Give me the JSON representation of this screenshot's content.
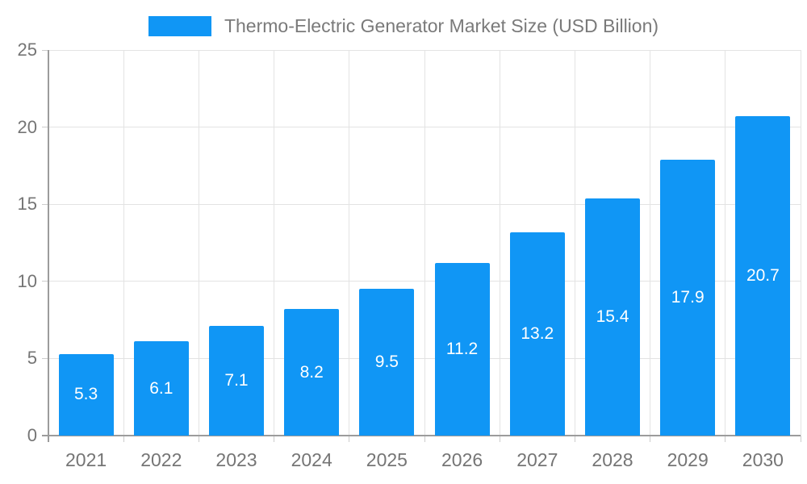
{
  "chart_data": {
    "type": "bar",
    "title": "Thermo-Electric Generator Market Size (USD Billion)",
    "categories": [
      "2021",
      "2022",
      "2023",
      "2024",
      "2025",
      "2026",
      "2027",
      "2028",
      "2029",
      "2030"
    ],
    "values": [
      5.3,
      6.1,
      7.1,
      8.2,
      9.5,
      11.2,
      13.2,
      15.4,
      17.9,
      20.7
    ],
    "value_labels": [
      "5.3",
      "6.1",
      "7.1",
      "8.2",
      "9.5",
      "11.2",
      "13.2",
      "15.4",
      "17.9",
      "20.7"
    ],
    "xlabel": "",
    "ylabel": "",
    "ylim": [
      0,
      25
    ],
    "yticks": [
      0,
      5,
      10,
      15,
      20,
      25
    ],
    "ytick_labels": [
      "0",
      "5",
      "10",
      "15",
      "20",
      "25"
    ],
    "grid": "on",
    "legend_position": "top-center",
    "colors": {
      "bar": "#1096f5",
      "value_text": "#ffffff",
      "axis_text": "#757575",
      "legend_text": "#7a7a7a",
      "gridline": "#e3e3e3",
      "axis_line": "#9c9c9c",
      "tick": "#cccccc",
      "background": "#ffffff"
    }
  }
}
